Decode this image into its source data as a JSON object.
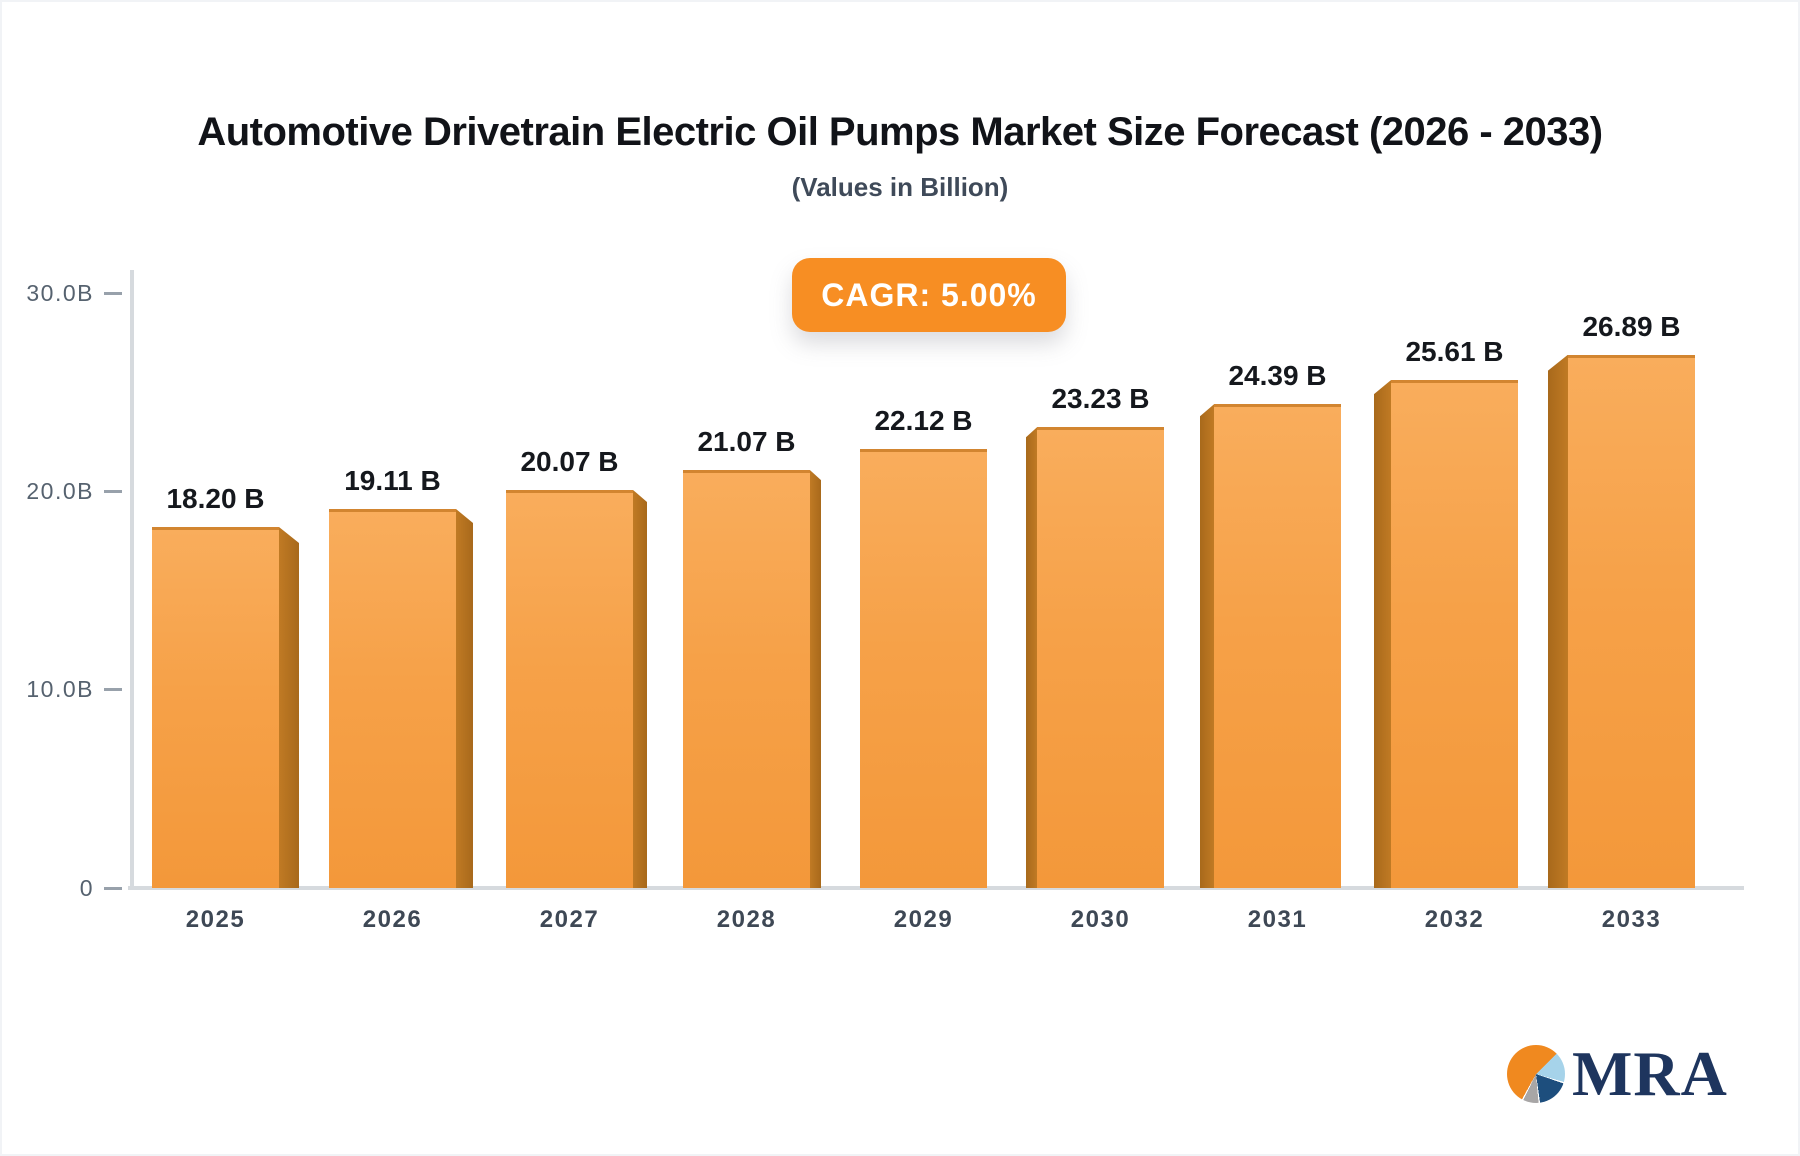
{
  "title": "Automotive Drivetrain Electric Oil Pumps Market Size Forecast (2026 - 2033)",
  "subtitle": "(Values in Billion)",
  "badge": {
    "label": "CAGR: 5.00%"
  },
  "chart_data": {
    "type": "bar",
    "title": "Automotive Drivetrain Electric Oil Pumps Market Size Forecast (2026 - 2033)",
    "subtitle": "(Values in Billion)",
    "annotation": "CAGR: 5.00%",
    "categories": [
      "2025",
      "2026",
      "2027",
      "2028",
      "2029",
      "2030",
      "2031",
      "2032",
      "2033"
    ],
    "values": [
      18.2,
      19.11,
      20.07,
      21.07,
      22.12,
      23.23,
      24.39,
      25.61,
      26.89
    ],
    "value_labels": [
      "18.20 B",
      "19.11 B",
      "20.07 B",
      "21.07 B",
      "22.12 B",
      "23.23 B",
      "24.39 B",
      "25.61 B",
      "26.89 B"
    ],
    "unit": "Billion",
    "xlabel": "",
    "ylabel": "",
    "ylim": [
      0,
      30
    ],
    "yticks": [
      {
        "value": 0,
        "label": "0"
      },
      {
        "value": 10,
        "label": "10.0B"
      },
      {
        "value": 20,
        "label": "20.0B"
      },
      {
        "value": 30,
        "label": "30.0B"
      }
    ],
    "grid": false,
    "legend": false,
    "bar_style": "3d-perspective-fan"
  },
  "logo": {
    "text": "MRA",
    "icon": "pie-chart-icon"
  },
  "colors": {
    "bar_face_top": "#f9ad5c",
    "bar_face_mid": "#f6a148",
    "bar_face_bottom": "#f3983a",
    "bar_top_edge": "#d28530",
    "bar_side_dark": "#a8691b",
    "bar_side_light": "#c07a24",
    "badge_bg": "#f78e23",
    "badge_text": "#ffffff",
    "title_text": "#111318",
    "subtitle_text": "#3f4a59",
    "value_label_text": "#15181d",
    "axis_label_text": "#56626f",
    "year_label_text": "#3e4855",
    "axis_line": "#d6dade",
    "tick_mark": "#98a1ab",
    "logo_text_color": "#1e355e",
    "logo_orange": "#f0891f",
    "logo_light_blue": "#a6d3ea",
    "logo_dark_blue": "#1d4e7d",
    "logo_gray": "#a8a6a6"
  }
}
